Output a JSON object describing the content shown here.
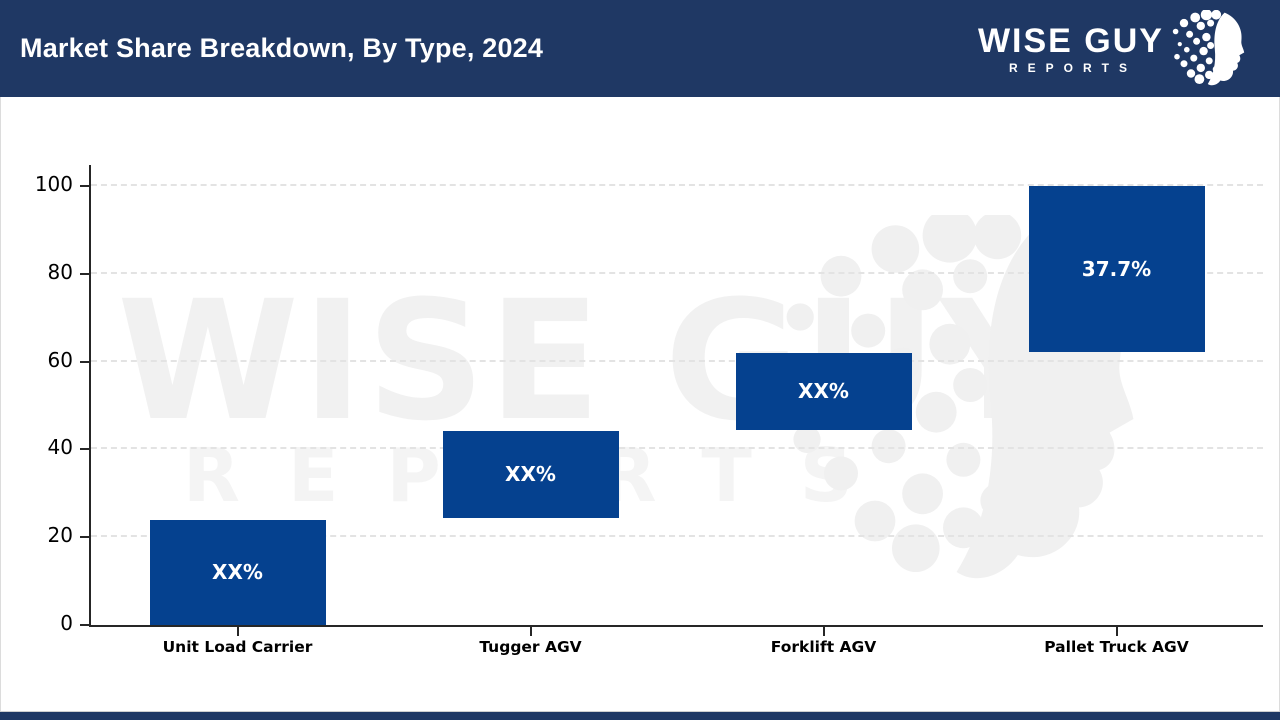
{
  "header": {
    "title": "Market Share Breakdown, By Type, 2024",
    "logo": {
      "line1": "WISE GUY",
      "line2": "REPORTS"
    }
  },
  "watermark": {
    "line1": "WISE GUY",
    "line2": "REPORTS"
  },
  "chart_data": {
    "type": "bar",
    "subtype": "waterfall",
    "title": "Market Share Breakdown, By Type, 2024",
    "categories": [
      "Unit Load Carrier",
      "Tugger AGV",
      "Forklift AGV",
      "Pallet Truck AGV"
    ],
    "segments": [
      {
        "category": "Unit Load Carrier",
        "start": 0,
        "end": 24,
        "label": "XX%"
      },
      {
        "category": "Tugger AGV",
        "start": 24.3,
        "end": 44.3,
        "label": "XX%"
      },
      {
        "category": "Forklift AGV",
        "start": 44.5,
        "end": 62,
        "label": "XX%"
      },
      {
        "category": "Pallet Truck AGV",
        "start": 62.3,
        "end": 100,
        "label": "37.7%"
      }
    ],
    "yticks": [
      0,
      20,
      40,
      60,
      80,
      100
    ],
    "ylim": [
      0,
      104.8
    ],
    "xlabel": "",
    "ylabel": "",
    "grid": "horizontal-dashed",
    "legend": "none",
    "bar_color": "#05418F",
    "bar_label_color": "#ffffff"
  },
  "colors": {
    "header_bg": "#1F3864",
    "footer_bar": "#1F3864",
    "watermark": "#F1F1F1",
    "axis": "#262626",
    "gridline": "#E3E3E3"
  },
  "icons": {
    "logo_face": "face-dots-icon"
  }
}
